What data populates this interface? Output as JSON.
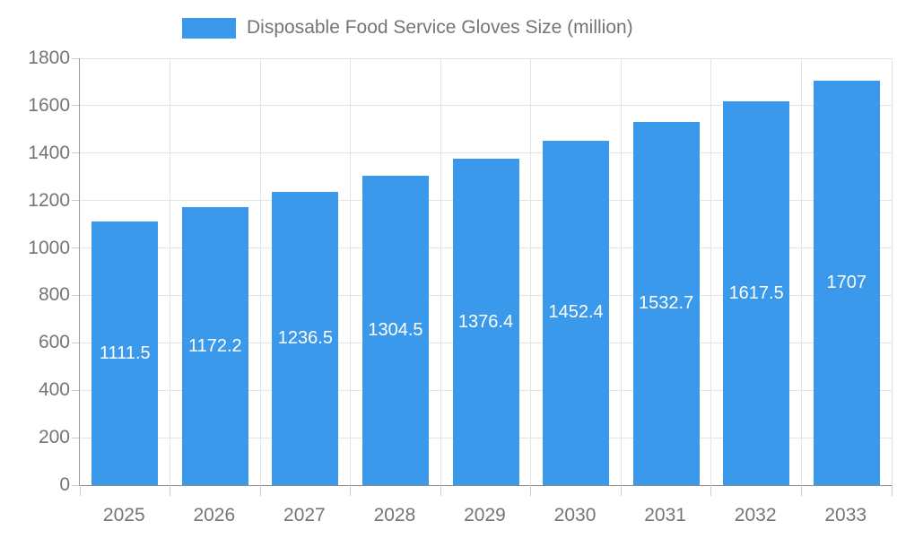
{
  "legend": {
    "label": "Disposable Food Service Gloves Size (million)"
  },
  "colors": {
    "bar": "#3b99ec",
    "axis_text": "#757575",
    "grid": "#e4e4e4",
    "axis_line": "#999999",
    "bar_label_text": "#ffffff"
  },
  "chart_data": {
    "type": "bar",
    "title": "Disposable Food Service Gloves Size (million)",
    "categories": [
      "2025",
      "2026",
      "2027",
      "2028",
      "2029",
      "2030",
      "2031",
      "2032",
      "2033"
    ],
    "series": [
      {
        "name": "Disposable Food Service Gloves Size (million)",
        "values": [
          1111.5,
          1172.2,
          1236.5,
          1304.5,
          1376.4,
          1452.4,
          1532.7,
          1617.5,
          1707
        ]
      }
    ],
    "value_labels": [
      "1111.5",
      "1172.2",
      "1236.5",
      "1304.5",
      "1376.4",
      "1452.4",
      "1532.7",
      "1617.5",
      "1707"
    ],
    "xlabel": "",
    "ylabel": "",
    "ylim": [
      0,
      1800
    ],
    "y_ticks": [
      0,
      200,
      400,
      600,
      800,
      1000,
      1200,
      1400,
      1600,
      1800
    ],
    "grid": true,
    "legend_position": "top"
  }
}
